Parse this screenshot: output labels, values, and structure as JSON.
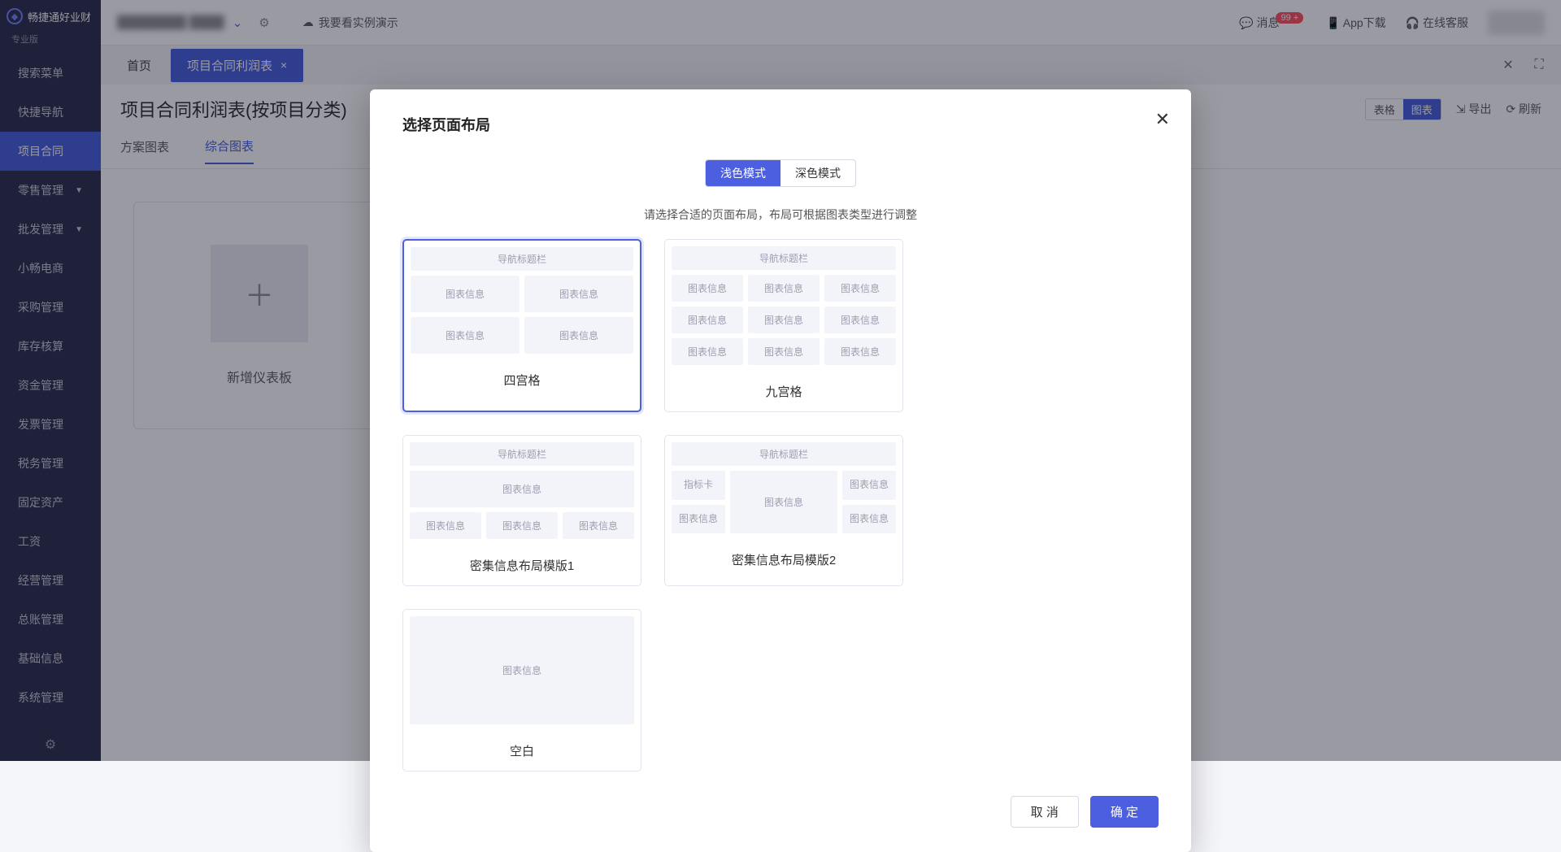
{
  "brand": {
    "name": "畅捷通好业财",
    "edition": "专业版"
  },
  "sidebar": {
    "items": [
      {
        "label": "搜索菜单",
        "caret": false
      },
      {
        "label": "快捷导航",
        "caret": false
      },
      {
        "label": "项目合同",
        "caret": false,
        "active": true
      },
      {
        "label": "零售管理",
        "caret": true
      },
      {
        "label": "批发管理",
        "caret": true
      },
      {
        "label": "小畅电商",
        "caret": false
      },
      {
        "label": "采购管理",
        "caret": false
      },
      {
        "label": "库存核算",
        "caret": false
      },
      {
        "label": "资金管理",
        "caret": false
      },
      {
        "label": "发票管理",
        "caret": false
      },
      {
        "label": "税务管理",
        "caret": false
      },
      {
        "label": "固定资产",
        "caret": false
      },
      {
        "label": "工资",
        "caret": false
      },
      {
        "label": "经营管理",
        "caret": false
      },
      {
        "label": "总账管理",
        "caret": false
      },
      {
        "label": "基础信息",
        "caret": false
      },
      {
        "label": "系统管理",
        "caret": false
      }
    ]
  },
  "topbar": {
    "demo": "我要看实例演示",
    "msg": "消息",
    "msgBadge": "99 +",
    "app": "App下载",
    "service": "在线客服"
  },
  "tabs": {
    "home": "首页",
    "active": "项目合同利润表"
  },
  "page": {
    "title": "项目合同利润表(按项目分类)",
    "toggle": {
      "table": "表格",
      "chart": "图表"
    },
    "export": "导出",
    "refresh": "刷新"
  },
  "subtabs": {
    "a": "方案图表",
    "b": "综合图表"
  },
  "addCard": "新增仪表板",
  "modal": {
    "title": "选择页面布局",
    "mode": {
      "light": "浅色模式",
      "dark": "深色模式"
    },
    "hint": "请选择合适的页面布局，布局可根据图表类型进行调整",
    "preview": {
      "nav": "导航标题栏",
      "chart": "图表信息",
      "card": "指标卡"
    },
    "layouts": [
      {
        "name": "四宫格",
        "selected": true
      },
      {
        "name": "九宫格"
      },
      {
        "name": "密集信息布局模版1"
      },
      {
        "name": "密集信息布局模版2"
      },
      {
        "name": "空白"
      }
    ],
    "cancel": "取 消",
    "ok": "确 定"
  }
}
